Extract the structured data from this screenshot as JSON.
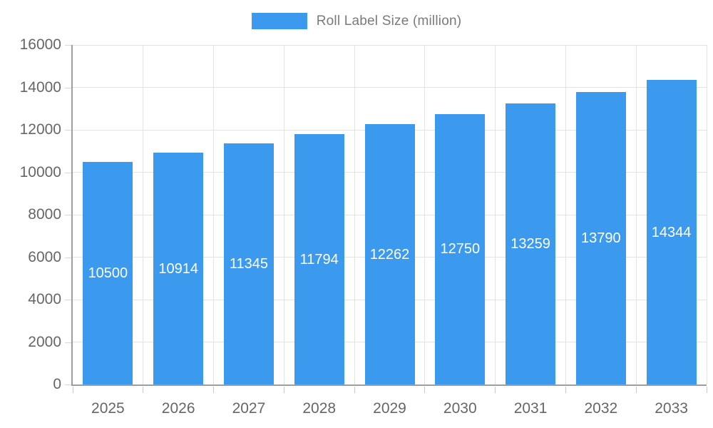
{
  "chart_data": {
    "type": "bar",
    "title": "",
    "legend": "Roll Label Size (million)",
    "categories": [
      "2025",
      "2026",
      "2027",
      "2028",
      "2029",
      "2030",
      "2031",
      "2032",
      "2033"
    ],
    "values": [
      10500,
      10914,
      11345,
      11794,
      12262,
      12750,
      13259,
      13790,
      14344
    ],
    "value_labels": [
      "10500",
      "10914",
      "11345",
      "11794",
      "12262",
      "12750",
      "13259",
      "13790",
      "14344"
    ],
    "xlabel": "",
    "ylabel": "",
    "ylim": [
      0,
      16000
    ],
    "y_ticks": [
      0,
      2000,
      4000,
      6000,
      8000,
      10000,
      12000,
      14000,
      16000
    ],
    "y_tick_labels": [
      "0",
      "2000",
      "4000",
      "6000",
      "8000",
      "10000",
      "12000",
      "14000",
      "16000"
    ],
    "grid": true,
    "legend_position": "top-center",
    "value_label_position": "center-of-bar"
  },
  "colors": {
    "bar": "#3B99EE",
    "axis_line": "#9E9E9E",
    "gridline": "#E3E3E3",
    "tick_label": "#666666",
    "legend_text": "#7A7A7A",
    "value_label": "#FFFFFF",
    "background": "#FFFFFF"
  }
}
